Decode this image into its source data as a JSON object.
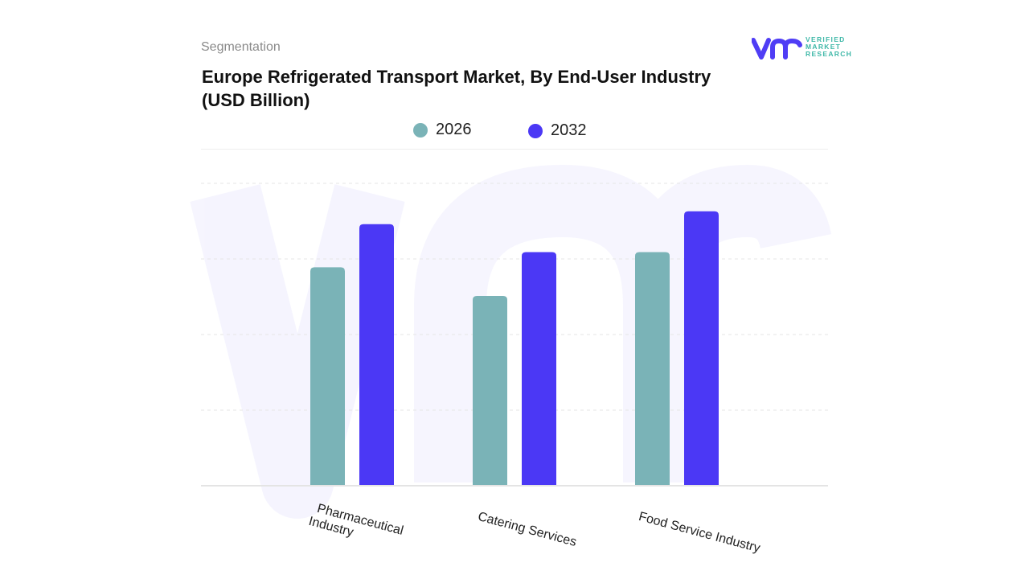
{
  "header": {
    "section": "Segmentation",
    "title": "Europe Refrigerated Transport Market, By End-User Industry (USD Billion)"
  },
  "logo": {
    "text_lines": [
      "VERIFIED",
      "MARKET",
      "RESEARCH"
    ],
    "mark": "vmr",
    "color": "#4f3df5",
    "text_color": "#3fb8a8"
  },
  "chart_data": {
    "type": "bar",
    "title": "Europe Refrigerated Transport Market, By End-User Industry (USD Billion)",
    "categories": [
      "Pharmaceutical Industry",
      "Catering Services",
      "Food Service Industry"
    ],
    "category_lines": [
      [
        "Pharmaceutical",
        "Industry"
      ],
      [
        "Catering Services"
      ],
      [
        "Food Service Industry"
      ]
    ],
    "series": [
      {
        "name": "2026",
        "color": "#7ab3b7",
        "values": [
          2.89,
          2.51,
          3.09
        ]
      },
      {
        "name": "2032",
        "color": "#4b38f5",
        "values": [
          3.46,
          3.09,
          3.63
        ]
      }
    ],
    "ylim": [
      0,
      4
    ],
    "grid": true,
    "legend": "top-center",
    "xlabel": "",
    "ylabel": ""
  }
}
